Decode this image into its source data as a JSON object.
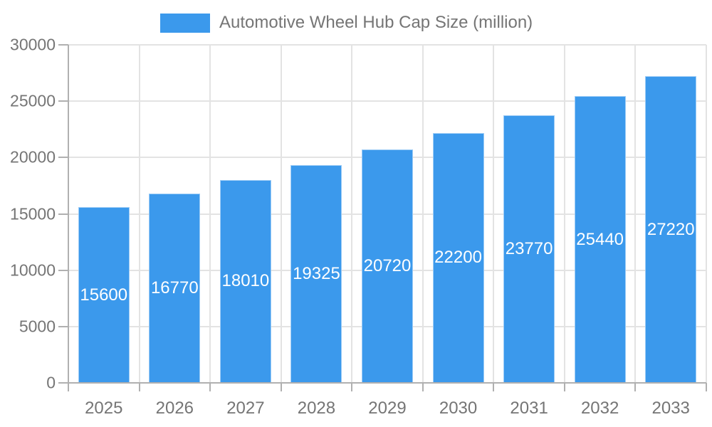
{
  "chart_data": {
    "type": "bar",
    "title": "Automotive Wheel Hub Cap Size (million)",
    "categories": [
      "2025",
      "2026",
      "2027",
      "2028",
      "2029",
      "2030",
      "2031",
      "2032",
      "2033"
    ],
    "series": [
      {
        "name": "Automotive Wheel Hub Cap Size (million)",
        "values": [
          15600,
          16770,
          18010,
          19325,
          20720,
          22200,
          23770,
          25440,
          27220
        ]
      }
    ],
    "xlabel": "",
    "ylabel": "",
    "ylim": [
      0,
      30000
    ],
    "ytick_interval": 5000,
    "yticks": [
      0,
      5000,
      10000,
      15000,
      20000,
      25000,
      30000
    ],
    "grid": true,
    "legend_position": "top",
    "value_labels_shown_inside_bars": true,
    "colors": {
      "bar": "#3B99EC",
      "value_label": "#FFFFFF",
      "axis_text": "#757575",
      "axis_line": "#B0B0B0",
      "gridline": "#E3E3E3",
      "background": "#FFFFFF"
    }
  }
}
